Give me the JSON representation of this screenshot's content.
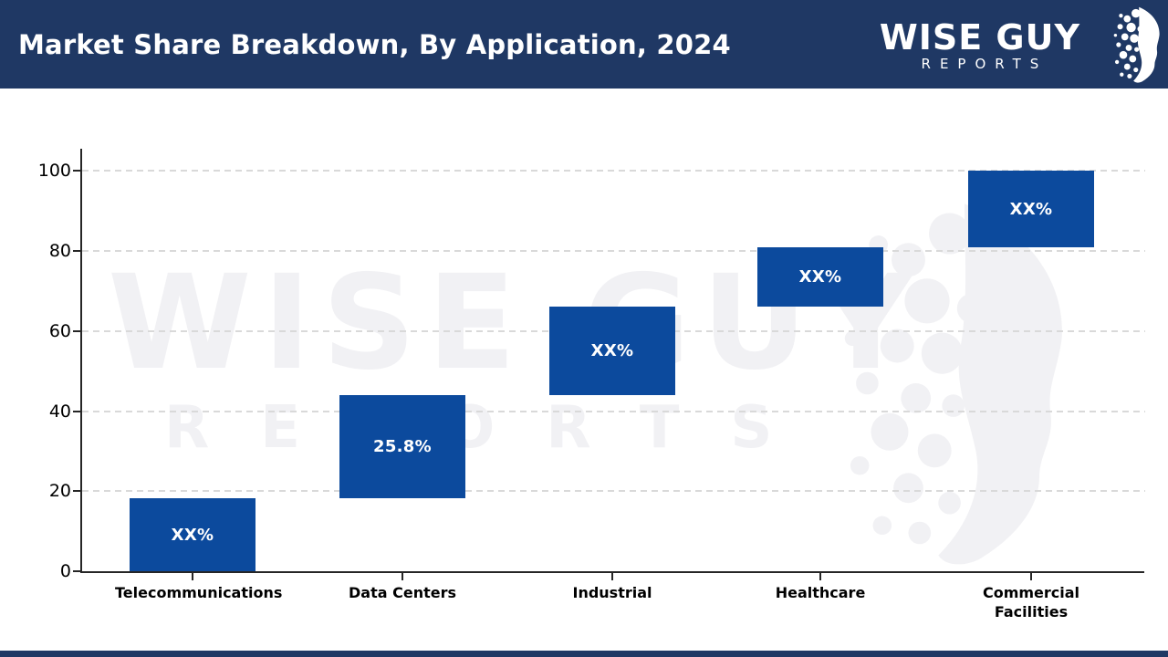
{
  "header": {
    "title": "Market Share Breakdown, By Application, 2024",
    "logo": {
      "line1": "WISE GUY",
      "line2": "REPORTS"
    }
  },
  "watermark": {
    "line1": "WISE GUY",
    "line2": "REPORTS"
  },
  "colors": {
    "header_bg": "#1f3864",
    "footer_bg": "#1f3864",
    "bar": "#0c4a9d",
    "bar_label": "#ffffff",
    "axis": "#262626",
    "gridline": "#d9d9d9",
    "watermark": "#f1f1f4"
  },
  "chart_data": {
    "type": "bar",
    "subtype": "waterfall",
    "title": "Market Share Breakdown, By Application, 2024",
    "categories": [
      "Telecommunications",
      "Data Centers",
      "Industrial",
      "Healthcare",
      "Commercial Facilities"
    ],
    "segments": [
      {
        "category": "Telecommunications",
        "start": 0,
        "end": 18.2,
        "value": 18.2,
        "label": "XX%"
      },
      {
        "category": "Data Centers",
        "start": 18.2,
        "end": 44.0,
        "value": 25.8,
        "label": "25.8%"
      },
      {
        "category": "Industrial",
        "start": 44.0,
        "end": 66.1,
        "value": 22.1,
        "label": "XX%"
      },
      {
        "category": "Healthcare",
        "start": 66.1,
        "end": 80.9,
        "value": 14.8,
        "label": "XX%"
      },
      {
        "category": "Commercial Facilities",
        "start": 80.9,
        "end": 100,
        "value": 19.1,
        "label": "XX%"
      }
    ],
    "ylabel": "",
    "xlabel": "",
    "yticks": [
      0,
      20,
      40,
      60,
      80,
      100
    ],
    "ylim": [
      0,
      105
    ],
    "grid": "horizontal-dashed",
    "legend": "none"
  }
}
